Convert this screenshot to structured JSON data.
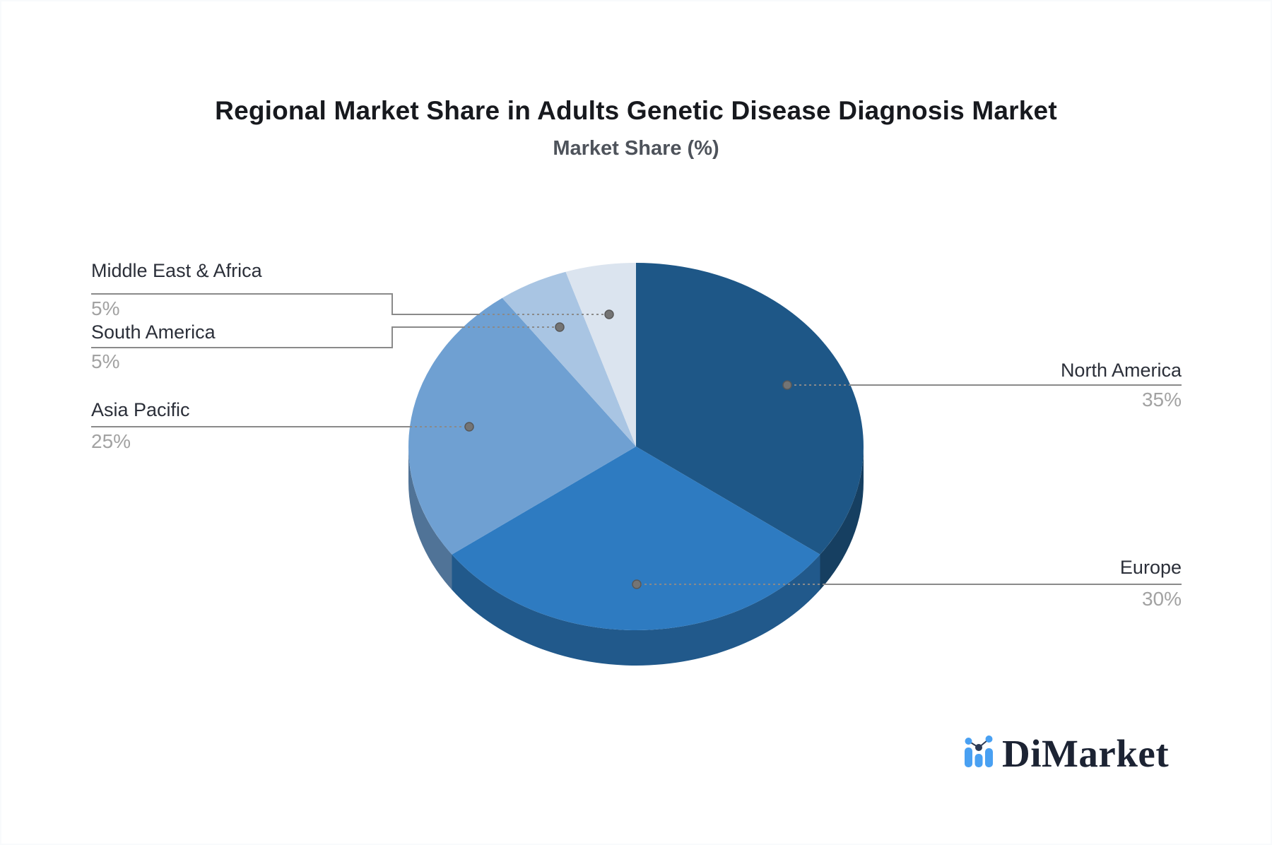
{
  "title": "Regional Market Share in Adults Genetic Disease Diagnosis Market",
  "subtitle": "Market Share (%)",
  "chart_data": {
    "type": "pie",
    "style": "3d",
    "unit": "%",
    "direction": "clockwise",
    "start_angle_deg_from_top": 0,
    "labels": [
      "North America",
      "Europe",
      "Asia Pacific",
      "South America",
      "Middle East & Africa"
    ],
    "values": [
      35,
      30,
      25,
      5,
      5
    ],
    "display_values": [
      "35%",
      "30%",
      "25%",
      "5%",
      "5%"
    ],
    "colors": [
      "#1E5787",
      "#2E7BC1",
      "#6FA0D2",
      "#A9C5E3",
      "#DBE4EF"
    ],
    "side_shade_factor": 0.72,
    "leader_line_color": "#8A8A8A",
    "anchor_dot_color": "#747474",
    "label_text_color": "#2B2F39",
    "value_text_color": "#A2A2A2",
    "legend_position": "callout-labels"
  },
  "logo": {
    "text": "DiMarket",
    "icon": "bar-line-chart-icon",
    "icon_color": "#49A0F2",
    "text_color": "#1C2333"
  }
}
